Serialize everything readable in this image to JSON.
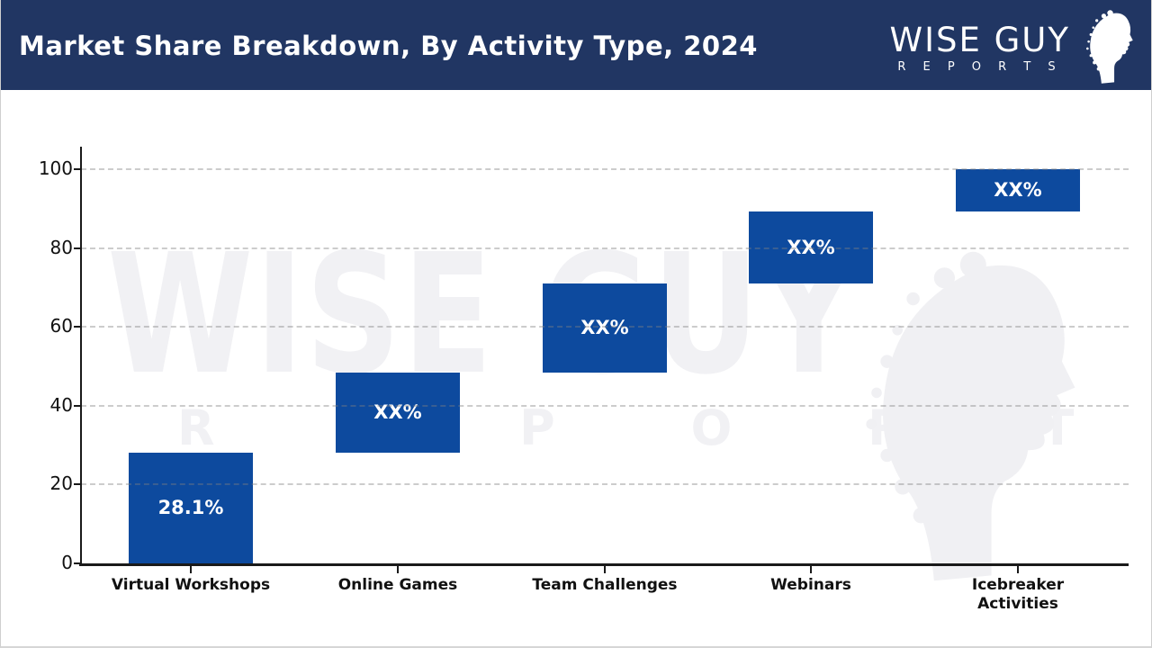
{
  "header": {
    "title": "Market Share Breakdown, By Activity Type, 2024",
    "logo": {
      "line1": "WISE GUY",
      "line2": "R E P O R T S"
    }
  },
  "watermark": {
    "line1": "WISE GUY",
    "line2": "R E P O R T S"
  },
  "colors": {
    "header_bg": "#213663",
    "bar_blue": "#0d4a9e",
    "watermark_gray": "#f1f1f4",
    "axis_black": "#1a1a1a"
  },
  "chart_data": {
    "type": "bar",
    "subtype": "waterfall",
    "title": "Market Share Breakdown, By Activity Type, 2024",
    "categories": [
      "Virtual Workshops",
      "Online Games",
      "Team Challenges",
      "Webinars",
      "Icebreaker\nActivities"
    ],
    "segments": [
      {
        "category": "Virtual Workshops",
        "start": 0,
        "end": 28.1,
        "label": "28.1%"
      },
      {
        "category": "Online Games",
        "start": 28.1,
        "end": 48.4,
        "label": "XX%"
      },
      {
        "category": "Team Challenges",
        "start": 48.4,
        "end": 71.1,
        "label": "XX%"
      },
      {
        "category": "Webinars",
        "start": 71.1,
        "end": 89.3,
        "label": "XX%"
      },
      {
        "category": "Icebreaker\nActivities",
        "start": 89.3,
        "end": 100,
        "label": "XX%"
      }
    ],
    "xlabel": "",
    "ylabel": "",
    "yticks": [
      0,
      20,
      40,
      60,
      80,
      100
    ],
    "ylim": [
      0,
      106
    ],
    "grid": "horizontal dashed, drawn over bars",
    "legend": "none"
  }
}
